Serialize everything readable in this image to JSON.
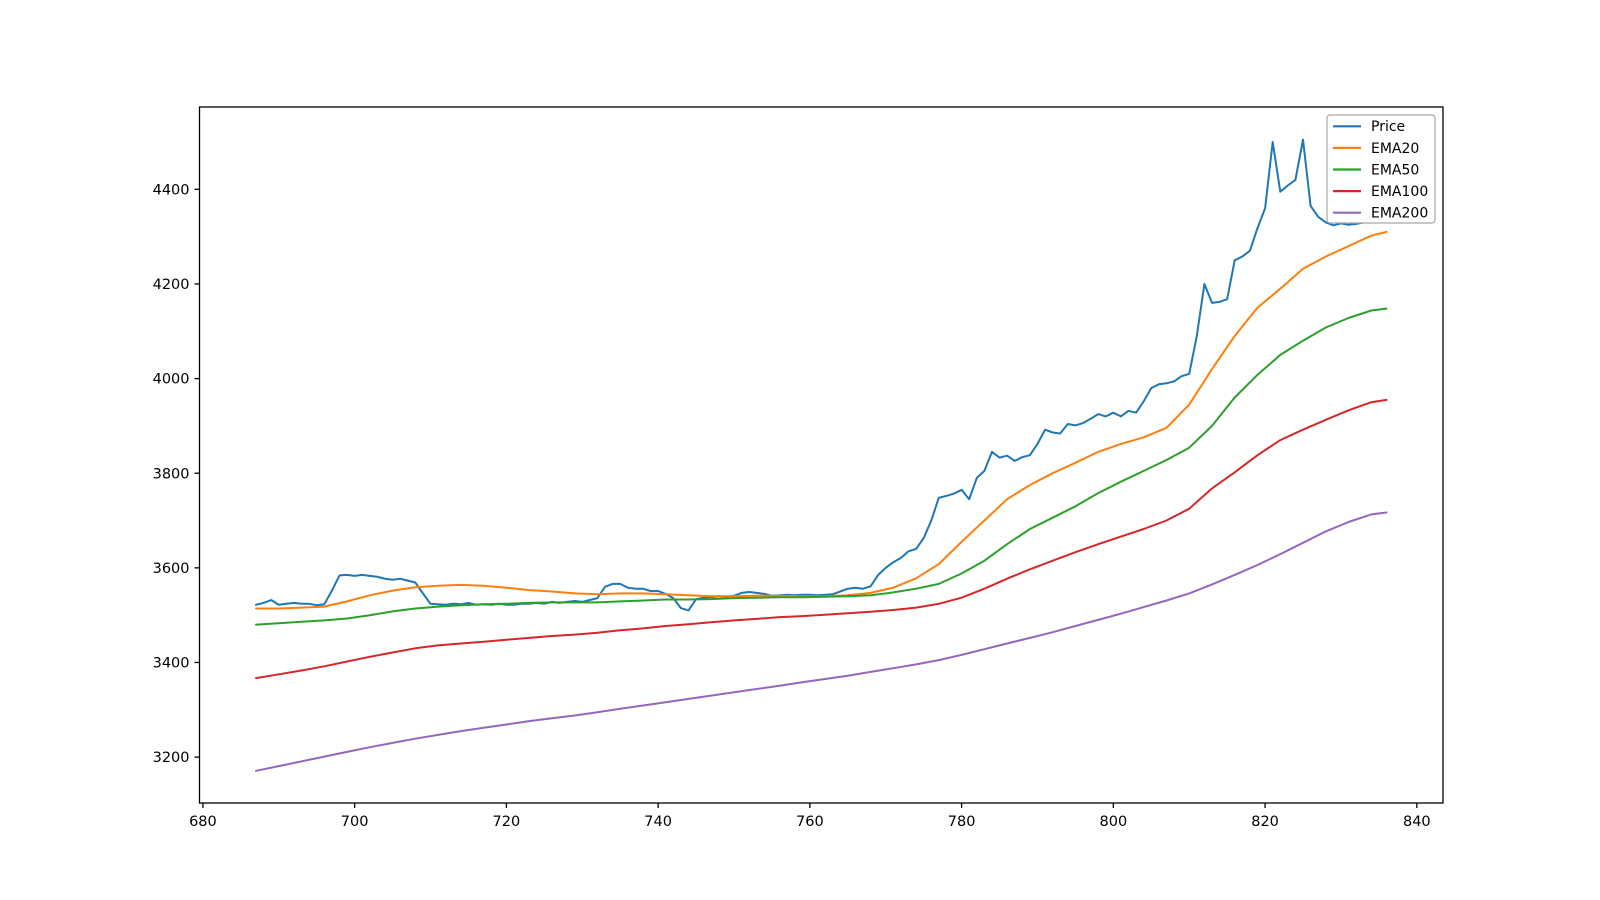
{
  "figure": {
    "background": "#ffffff",
    "title": ""
  },
  "chart_data": {
    "type": "line",
    "title": "",
    "xlabel": "",
    "ylabel": "",
    "grid": false,
    "xlim": [
      679.55,
      843.45
    ],
    "ylim": [
      3103,
      4574
    ],
    "xticks": [
      680,
      700,
      720,
      740,
      760,
      780,
      800,
      820,
      840
    ],
    "yticks": [
      3200,
      3400,
      3600,
      3800,
      4000,
      4200,
      4400
    ],
    "legend": {
      "position": "upper right",
      "entries": [
        "Price",
        "EMA20",
        "EMA50",
        "EMA100",
        "EMA200"
      ]
    },
    "series": [
      {
        "name": "Price",
        "color": "#1f77b4",
        "x_start": 687,
        "x_step": 1,
        "y": [
          3522,
          3526,
          3532,
          3522,
          3524,
          3526,
          3524,
          3524,
          3521,
          3523,
          3552,
          3584,
          3585,
          3583,
          3585,
          3583,
          3581,
          3577,
          3575,
          3577,
          3573,
          3569,
          3546,
          3524,
          3523,
          3522,
          3524,
          3523,
          3526,
          3522,
          3523,
          3522,
          3524,
          3522,
          3522,
          3524,
          3524,
          3526,
          3524,
          3528,
          3526,
          3528,
          3530,
          3528,
          3532,
          3536,
          3560,
          3566,
          3566,
          3558,
          3556,
          3556,
          3551,
          3551,
          3545,
          3536,
          3515,
          3510,
          3534,
          3537,
          3538,
          3540,
          3539,
          3541,
          3547,
          3549,
          3547,
          3545,
          3541,
          3542,
          3543,
          3542,
          3543,
          3543,
          3542,
          3543,
          3544,
          3550,
          3556,
          3558,
          3556,
          3561,
          3585,
          3600,
          3612,
          3621,
          3635,
          3640,
          3663,
          3700,
          3748,
          3752,
          3757,
          3765,
          3745,
          3790,
          3805,
          3845,
          3833,
          3837,
          3826,
          3834,
          3838,
          3862,
          3892,
          3886,
          3884,
          3904,
          3901,
          3906,
          3915,
          3925,
          3920,
          3928,
          3920,
          3932,
          3928,
          3952,
          3980,
          3988,
          3990,
          3994,
          4005,
          4010,
          4090,
          4200,
          4160,
          4162,
          4168,
          4250,
          4258,
          4270,
          4318,
          4360,
          4500,
          4395,
          4408,
          4420,
          4505,
          4365,
          4342,
          4330,
          4324,
          4328,
          4325,
          4327,
          4330,
          4345,
          4360,
          4370
        ]
      },
      {
        "name": "EMA20",
        "color": "#ff7f0e",
        "x": [
          687,
          690,
          693,
          696,
          699,
          702,
          705,
          708,
          711,
          714,
          717,
          720,
          723,
          726,
          729,
          732,
          735,
          738,
          741,
          744,
          747,
          750,
          753,
          756,
          759,
          762,
          765,
          768,
          771,
          774,
          777,
          780,
          783,
          786,
          789,
          792,
          795,
          798,
          801,
          804,
          807,
          810,
          813,
          816,
          819,
          822,
          825,
          828,
          831,
          834,
          836
        ],
        "y": [
          3514,
          3514,
          3516,
          3518,
          3529,
          3542,
          3552,
          3559,
          3562,
          3564,
          3562,
          3558,
          3553,
          3550,
          3546,
          3544,
          3546,
          3546,
          3544,
          3542,
          3540,
          3540,
          3541,
          3541,
          3540,
          3540,
          3542,
          3547,
          3558,
          3578,
          3608,
          3655,
          3700,
          3745,
          3775,
          3800,
          3822,
          3845,
          3862,
          3876,
          3896,
          3945,
          4020,
          4090,
          4150,
          4190,
          4232,
          4258,
          4280,
          4302,
          4310
        ]
      },
      {
        "name": "EMA50",
        "color": "#2ca02c",
        "x": [
          687,
          690,
          693,
          696,
          699,
          702,
          705,
          708,
          711,
          714,
          717,
          720,
          723,
          726,
          729,
          732,
          735,
          738,
          741,
          744,
          747,
          750,
          753,
          756,
          759,
          762,
          765,
          768,
          771,
          774,
          777,
          780,
          783,
          786,
          789,
          792,
          795,
          798,
          801,
          804,
          807,
          810,
          813,
          816,
          819,
          822,
          825,
          828,
          831,
          834,
          836
        ],
        "y": [
          3480,
          3483,
          3486,
          3489,
          3493,
          3500,
          3508,
          3514,
          3518,
          3521,
          3523,
          3524,
          3526,
          3527,
          3527,
          3527,
          3529,
          3531,
          3533,
          3533,
          3534,
          3536,
          3537,
          3538,
          3538,
          3539,
          3540,
          3542,
          3548,
          3556,
          3566,
          3588,
          3615,
          3650,
          3682,
          3706,
          3730,
          3758,
          3782,
          3805,
          3828,
          3854,
          3900,
          3960,
          4008,
          4050,
          4080,
          4108,
          4128,
          4144,
          4148
        ]
      },
      {
        "name": "EMA100",
        "color": "#d62728",
        "x": [
          687,
          690,
          693,
          696,
          699,
          702,
          705,
          708,
          711,
          714,
          717,
          720,
          723,
          726,
          729,
          732,
          735,
          738,
          741,
          744,
          747,
          750,
          753,
          756,
          759,
          762,
          765,
          768,
          771,
          774,
          777,
          780,
          783,
          786,
          789,
          792,
          795,
          798,
          801,
          804,
          807,
          810,
          813,
          816,
          819,
          822,
          825,
          828,
          831,
          834,
          836
        ],
        "y": [
          3367,
          3375,
          3383,
          3392,
          3402,
          3412,
          3421,
          3430,
          3436,
          3440,
          3444,
          3448,
          3452,
          3456,
          3459,
          3463,
          3468,
          3472,
          3477,
          3481,
          3485,
          3489,
          3492,
          3496,
          3498,
          3501,
          3504,
          3507,
          3511,
          3516,
          3524,
          3537,
          3556,
          3577,
          3597,
          3615,
          3633,
          3650,
          3666,
          3682,
          3700,
          3725,
          3768,
          3802,
          3838,
          3870,
          3892,
          3913,
          3933,
          3950,
          3955
        ]
      },
      {
        "name": "EMA200",
        "color": "#9467bd",
        "x": [
          687,
          690,
          693,
          696,
          699,
          702,
          705,
          708,
          711,
          714,
          717,
          720,
          723,
          726,
          729,
          732,
          735,
          738,
          741,
          744,
          747,
          750,
          753,
          756,
          759,
          762,
          765,
          768,
          771,
          774,
          777,
          780,
          783,
          786,
          789,
          792,
          795,
          798,
          801,
          804,
          807,
          810,
          813,
          816,
          819,
          822,
          825,
          828,
          831,
          834,
          836
        ],
        "y": [
          3171,
          3181,
          3191,
          3201,
          3211,
          3221,
          3230,
          3239,
          3247,
          3255,
          3262,
          3269,
          3276,
          3282,
          3288,
          3295,
          3302,
          3309,
          3316,
          3323,
          3330,
          3337,
          3344,
          3351,
          3358,
          3365,
          3372,
          3380,
          3388,
          3396,
          3405,
          3416,
          3428,
          3440,
          3452,
          3464,
          3477,
          3490,
          3503,
          3517,
          3531,
          3546,
          3565,
          3585,
          3606,
          3629,
          3653,
          3677,
          3697,
          3713,
          3717
        ]
      }
    ]
  }
}
